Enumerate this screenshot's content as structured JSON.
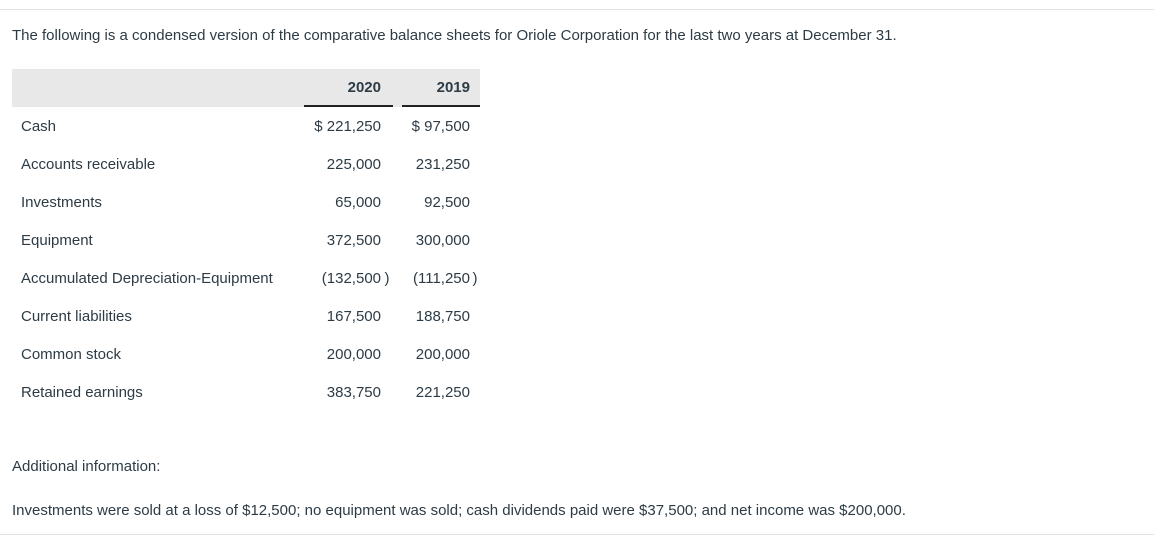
{
  "page": {
    "intro": "The following is a condensed version of the comparative balance sheets for Oriole Corporation for the last two years at December 31.",
    "additional_info_heading": "Additional information:",
    "additional_info": "Investments were sold at a loss of $12,500; no equipment was sold; cash dividends paid were $37,500; and net income was $200,000."
  },
  "balance_sheet": {
    "columns": [
      "2020",
      "2019"
    ],
    "rows": [
      {
        "label": "Cash",
        "y2020": "$ 221,250",
        "y2019": "$ 97,500"
      },
      {
        "label": "Accounts receivable",
        "y2020": "225,000",
        "y2019": "231,250"
      },
      {
        "label": "Investments",
        "y2020": "65,000",
        "y2019": "92,500"
      },
      {
        "label": "Equipment",
        "y2020": "372,500",
        "y2019": "300,000"
      },
      {
        "label": "Accumulated Depreciation-Equipment",
        "y2020": "(132,500",
        "y2020_paren": ")",
        "y2019": "(111,250",
        "y2019_paren": ")"
      },
      {
        "label": "Current liabilities",
        "y2020": "167,500",
        "y2019": "188,750"
      },
      {
        "label": "Common stock",
        "y2020": "200,000",
        "y2019": "200,000"
      },
      {
        "label": "Retained earnings",
        "y2020": "383,750",
        "y2019": "221,250"
      }
    ]
  },
  "colors": {
    "text": "#2D3B45",
    "header_bg": "#E8E8E8",
    "header_underline": "#222222",
    "divider": "#E2E2E2"
  }
}
